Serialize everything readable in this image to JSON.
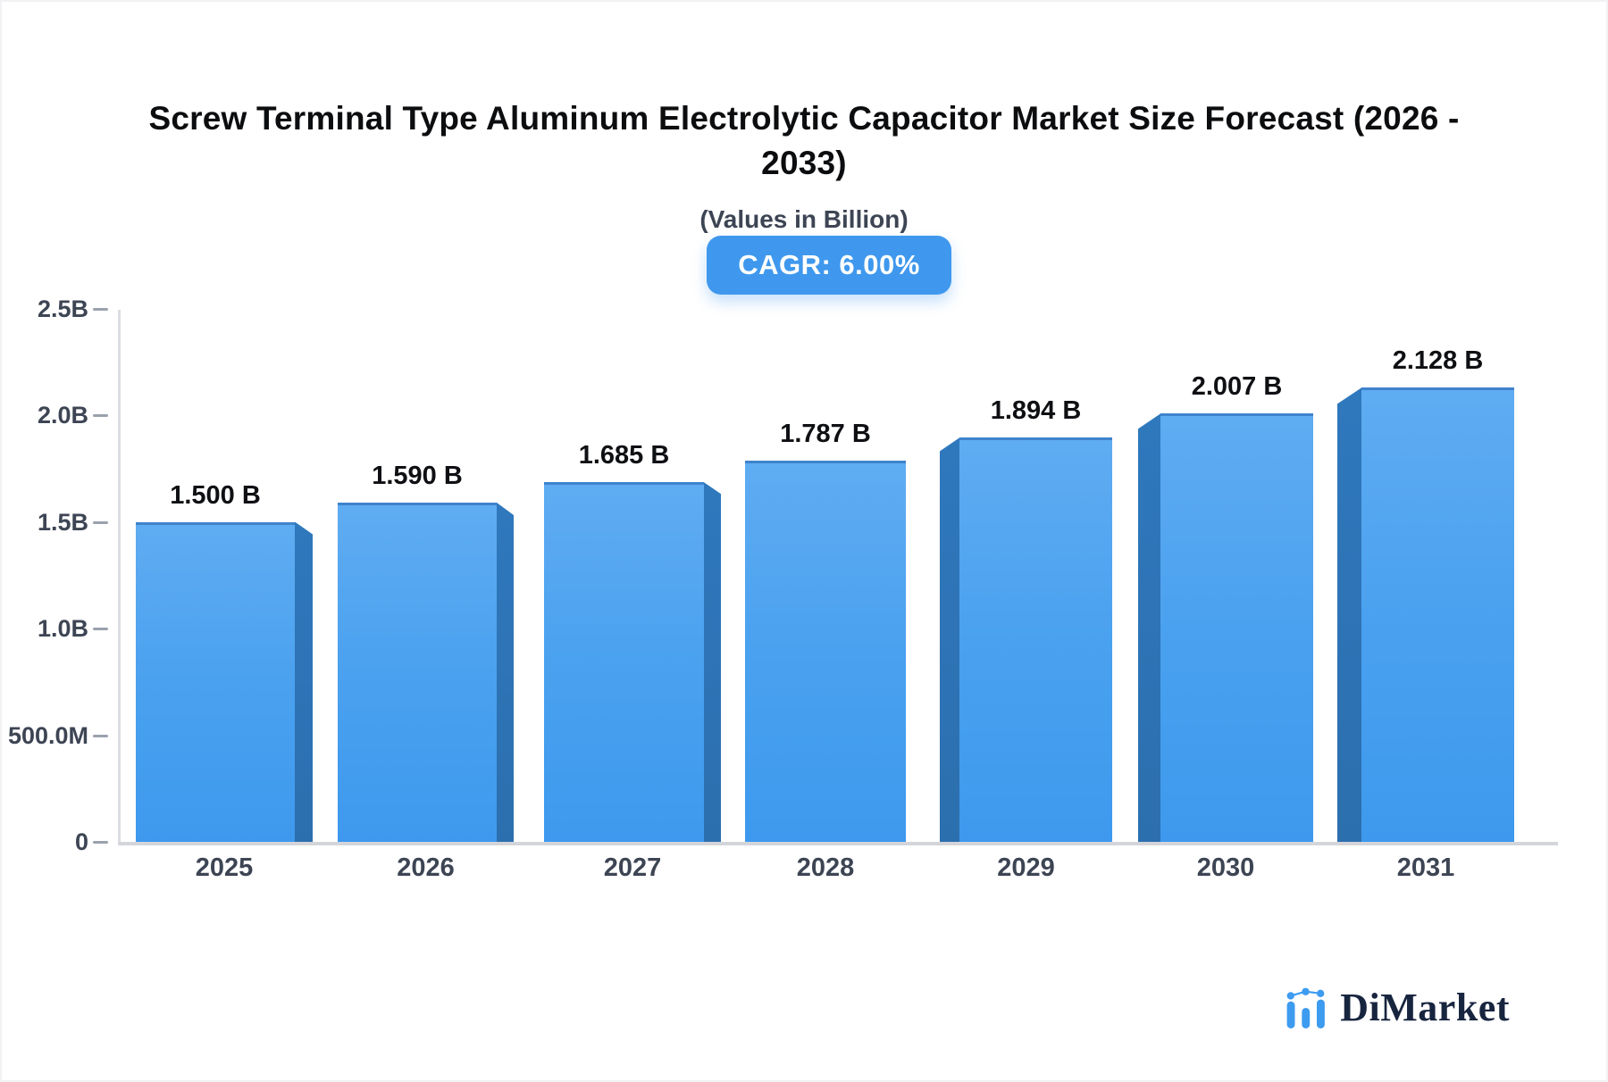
{
  "header": {
    "title_lines": [
      "Screw Terminal Type Aluminum Electrolytic Capacitor Market Size Forecast (2026 -",
      "2033)"
    ],
    "subtitle": "(Values in Billion)",
    "badge_label": "CAGR: 6.00%",
    "badge_color": "#3f98ed"
  },
  "chart_data": {
    "type": "bar",
    "title": "Screw Terminal Type Aluminum Electrolytic Capacitor Market Size Forecast (2026 - 2033)",
    "subtitle": "(Values in Billion)",
    "cagr_badge": "CAGR: 6.00%",
    "categories": [
      "2025",
      "2026",
      "2027",
      "2028",
      "2029",
      "2030",
      "2031"
    ],
    "values": [
      1.5,
      1.59,
      1.685,
      1.787,
      1.894,
      2.007,
      2.128
    ],
    "value_labels": [
      "1.500 B",
      "1.590 B",
      "1.685 B",
      "1.787 B",
      "1.894 B",
      "2.007 B",
      "2.128 B"
    ],
    "unit": "Billion",
    "ylim": [
      0,
      2.5
    ],
    "yticks": [
      "2.5B",
      "2.0B",
      "1.5B",
      "1.0B",
      "500.0M",
      "0"
    ],
    "ytick_values": [
      2.5,
      2.0,
      1.5,
      1.0,
      0.5,
      0
    ],
    "grid": false,
    "legend": false,
    "colors": {
      "bar_face_top": "#5facf2",
      "bar_face_bottom": "#3e99ee",
      "bar_top_edge": "#3f83cc",
      "bar_side": "#2e74b8",
      "axis": "#d3d5da",
      "tick": "#9aa1ad",
      "axis_label": "#3d4554",
      "value_label": "#0f1013"
    }
  },
  "footer": {
    "brand": "DiMarket",
    "brand_color": "#18253f",
    "icon_color": "#3d9bf0"
  }
}
